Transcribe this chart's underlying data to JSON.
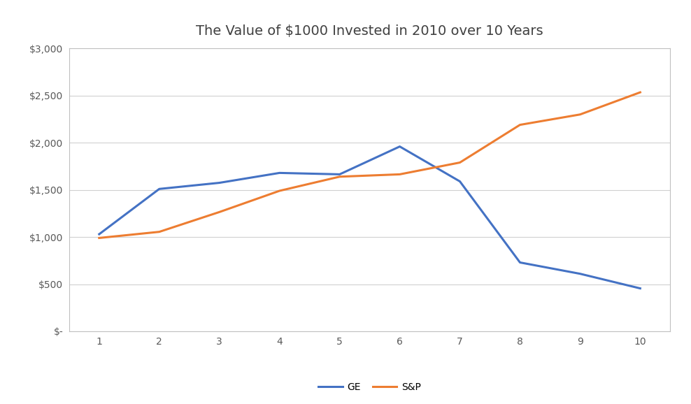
{
  "title": "The Value of $1000 Invested in 2010 over 10 Years",
  "x_values": [
    1,
    2,
    3,
    4,
    5,
    6,
    7,
    8,
    9,
    10
  ],
  "ge_values": [
    1030,
    1510,
    1575,
    1680,
    1665,
    1960,
    1590,
    730,
    610,
    455
  ],
  "sp_values": [
    990,
    1055,
    1265,
    1490,
    1640,
    1665,
    1790,
    2190,
    2300,
    2535
  ],
  "ge_color": "#4472C4",
  "sp_color": "#ED7D31",
  "ge_label": "GE",
  "sp_label": "S&P",
  "ylim": [
    0,
    3000
  ],
  "yticks": [
    0,
    500,
    1000,
    1500,
    2000,
    2500,
    3000
  ],
  "ytick_labels": [
    "$-",
    "$500",
    "$1,000",
    "$1,500",
    "$2,000",
    "$2,500",
    "$3,000"
  ],
  "xlim": [
    0.5,
    10.5
  ],
  "xticks": [
    1,
    2,
    3,
    4,
    5,
    6,
    7,
    8,
    9,
    10
  ],
  "background_color": "#ffffff",
  "plot_background": "#ffffff",
  "grid_color": "#d0d0d0",
  "box_color": "#c0c0c0",
  "title_fontsize": 14,
  "tick_fontsize": 10,
  "legend_fontsize": 10,
  "line_width": 2.2
}
